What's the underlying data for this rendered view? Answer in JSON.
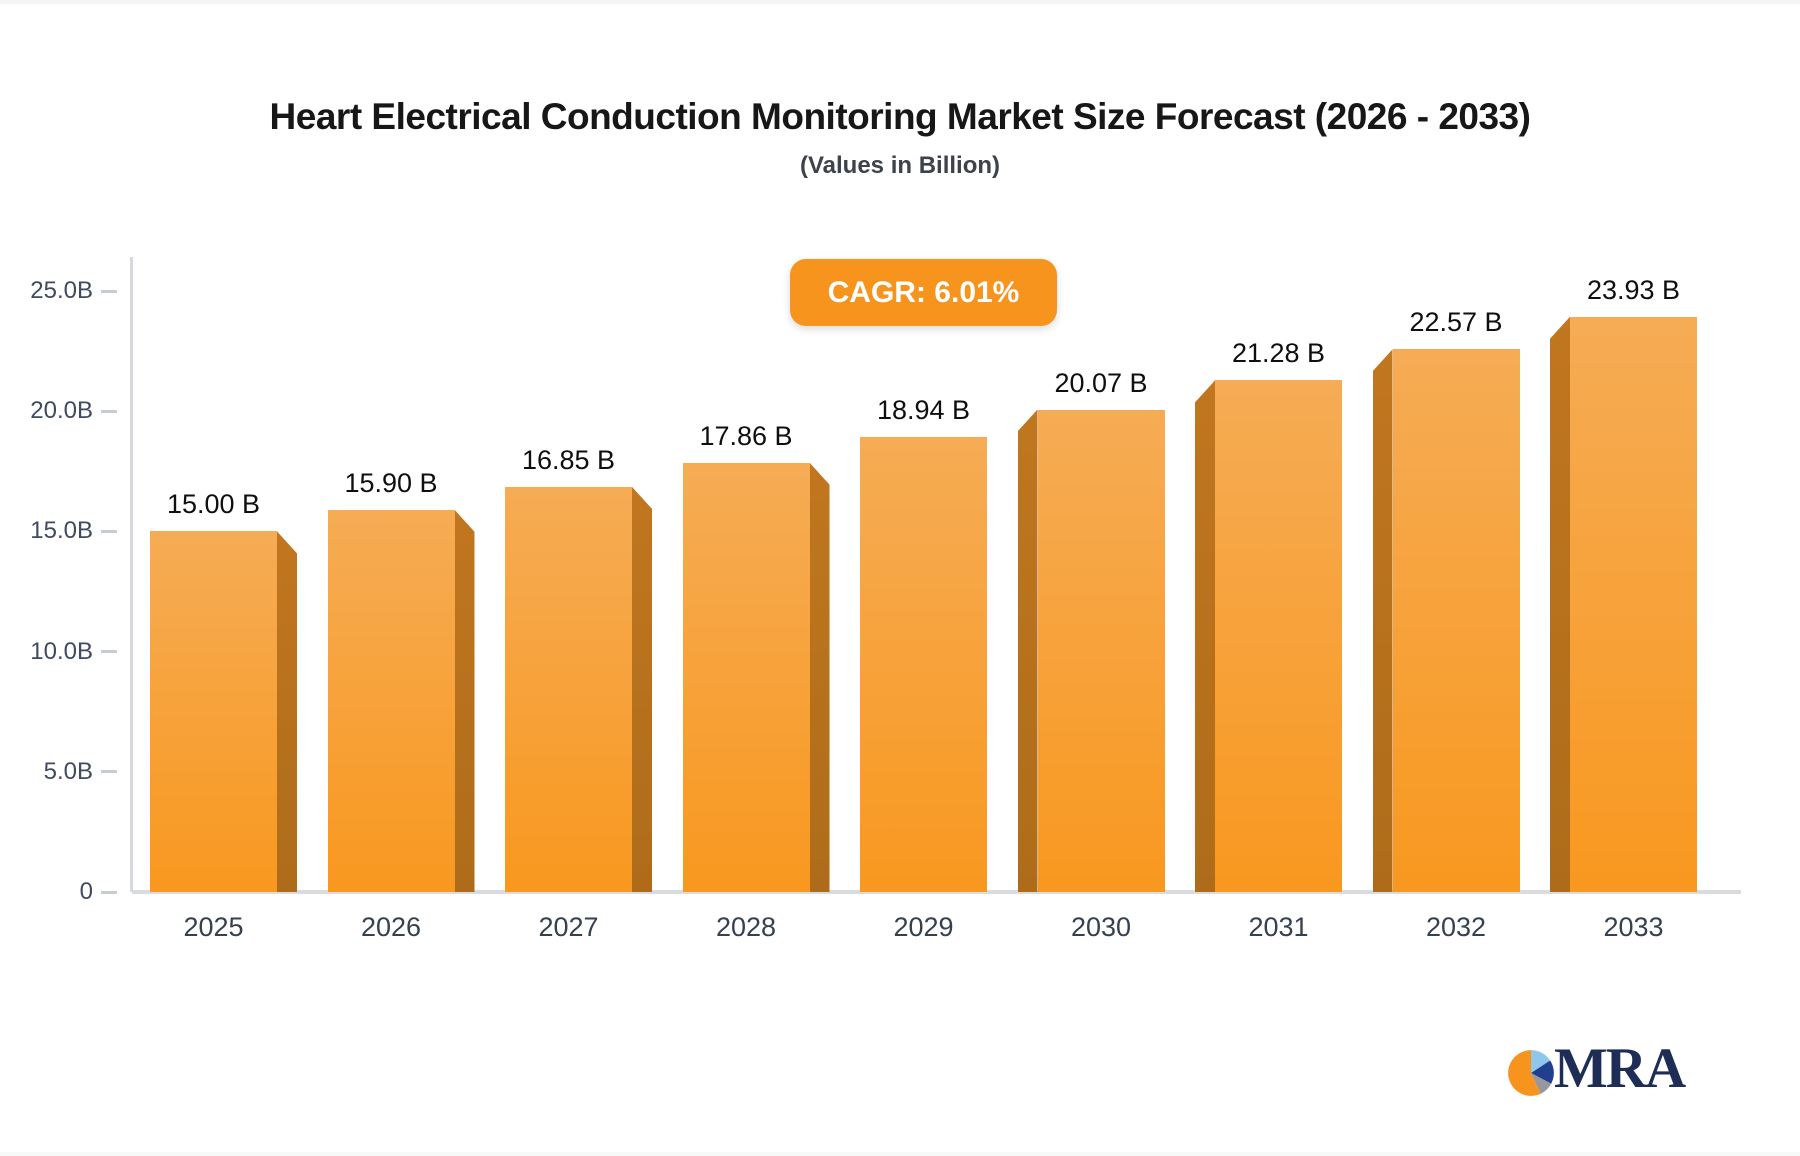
{
  "page": {
    "title": "Heart Electrical Conduction Monitoring Market Size Forecast (2026 - 2033)",
    "subtitle": "(Values in Billion)"
  },
  "badge": {
    "label": "CAGR: 6.01%",
    "bg": "#f7941e"
  },
  "chart_data": {
    "type": "bar",
    "title": "Heart Electrical Conduction Monitoring Market Size Forecast (2026 - 2033)",
    "subtitle": "(Values in Billion)",
    "cagr_pct": 6.01,
    "categories": [
      "2025",
      "2026",
      "2027",
      "2028",
      "2029",
      "2030",
      "2031",
      "2032",
      "2033"
    ],
    "values": [
      15.0,
      15.9,
      16.85,
      17.86,
      18.94,
      20.07,
      21.28,
      22.57,
      23.93
    ],
    "bar_labels": [
      "15.00 B",
      "15.90 B",
      "16.85 B",
      "17.86 B",
      "18.94 B",
      "20.07 B",
      "21.28 B",
      "22.57 B",
      "23.93 B"
    ],
    "xlabel": "",
    "ylabel": "",
    "ylim": [
      0,
      25
    ],
    "ytick_labels": [
      "25.0B",
      "20.0B",
      "15.0B",
      "10.0B",
      "5.0B",
      "0"
    ],
    "ytick_values": [
      25,
      20,
      15,
      10,
      5,
      0
    ],
    "grid": "off",
    "legend": "none",
    "colors": {
      "bar_top": "#f6ac55",
      "bar_bottom": "#f8981f",
      "bar_side": "#b5701d",
      "axis": "#d6dade",
      "accent": "#f7941e"
    }
  },
  "logo": {
    "text": "MRA",
    "colors": {
      "orange": "#f7941e",
      "lightblue": "#8ec7ea",
      "navy": "#20408f",
      "gray": "#98979b",
      "text": "#1d2d55"
    }
  }
}
